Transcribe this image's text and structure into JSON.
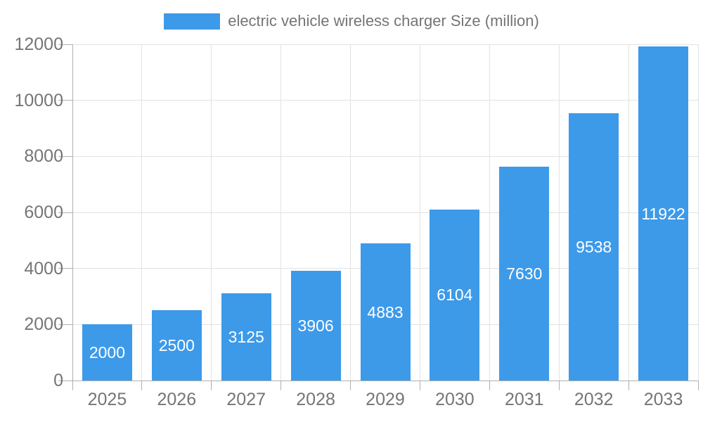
{
  "chart_data": {
    "type": "bar",
    "title": "",
    "legend": {
      "label": "electric vehicle wireless charger Size (million)",
      "position": "top"
    },
    "categories": [
      "2025",
      "2026",
      "2027",
      "2028",
      "2029",
      "2030",
      "2031",
      "2032",
      "2033"
    ],
    "series": [
      {
        "name": "electric vehicle wireless charger Size (million)",
        "values": [
          2000,
          2500,
          3125,
          3906,
          4883,
          6104,
          7630,
          9538,
          11922
        ],
        "color": "#3d9ae9"
      }
    ],
    "xlabel": "",
    "ylabel": "",
    "ylim": [
      0,
      12000
    ],
    "yticks": [
      0,
      2000,
      4000,
      6000,
      8000,
      10000,
      12000
    ],
    "grid": true,
    "value_labels_inside_bars": true
  },
  "colors": {
    "bar": "#3d9ae9",
    "grid": "#e2e2e2",
    "axis": "#b0b0b0",
    "tick_text": "#757575",
    "value_text": "#ffffff",
    "background": "#ffffff"
  }
}
